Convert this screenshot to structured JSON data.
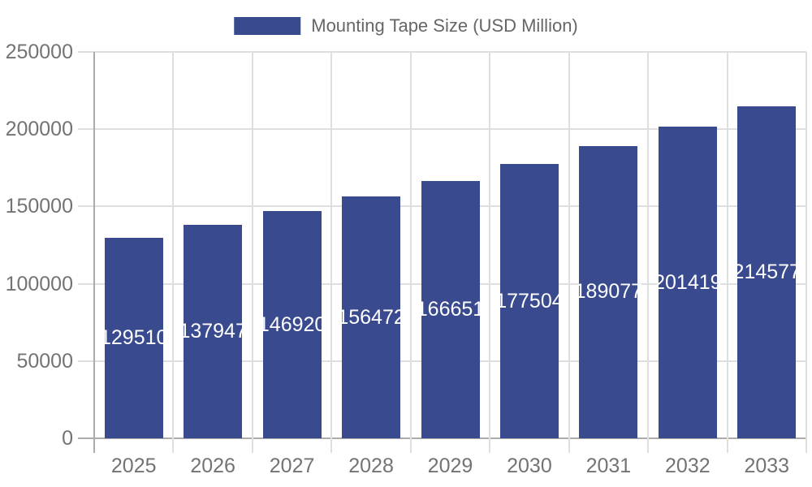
{
  "legend": {
    "label": "Mounting Tape Size (USD Million)"
  },
  "colors": {
    "bar": "#394A8F",
    "grid_line": "#DFDFDF",
    "axis_line": "#ABABAB",
    "tick_label": "#737373",
    "legend_label": "#666666",
    "value_label": "#FFFFFF",
    "background": "#FFFFFF"
  },
  "chart_data": {
    "type": "bar",
    "title": "Mounting Tape Size (USD Million)",
    "categories": [
      "2025",
      "2026",
      "2027",
      "2028",
      "2029",
      "2030",
      "2031",
      "2032",
      "2033"
    ],
    "values": [
      129510,
      137947,
      146920,
      156472,
      166651,
      177504,
      189077,
      201419,
      214577
    ],
    "series_name": "Mounting Tape Size (USD Million)",
    "xlabel": "",
    "ylabel": "",
    "ylim": [
      0,
      250000
    ],
    "yticks": [
      0,
      50000,
      100000,
      150000,
      200000,
      250000
    ],
    "grid": true,
    "legend_position": "top",
    "value_labels": "inside-center"
  }
}
